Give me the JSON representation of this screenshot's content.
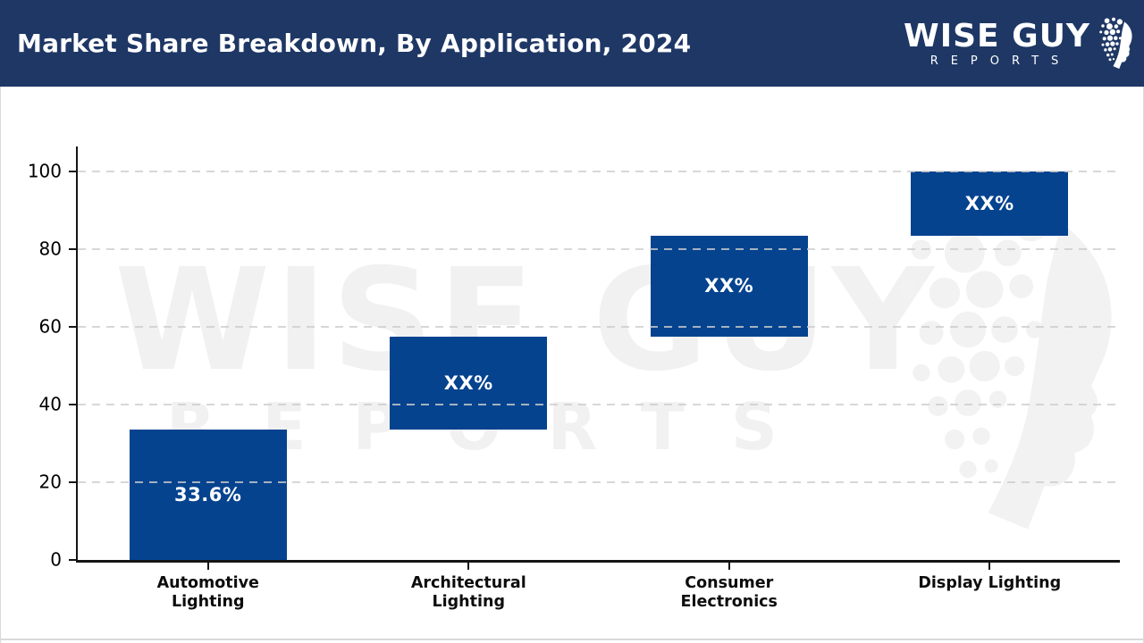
{
  "header": {
    "title": "Market Share Breakdown, By Application, 2024"
  },
  "brand": {
    "wordmark": "WISE GUY",
    "reports": "REPORTS",
    "head_icon": "dotted-face-profile"
  },
  "watermark": {
    "wordmark": "WISE GUY",
    "reports": "REPORTS",
    "head_icon": "dotted-face-profile"
  },
  "chart_data": {
    "type": "bar",
    "subtype": "waterfall",
    "title": "Market Share Breakdown, By Application, 2024",
    "xlabel": "",
    "ylabel": "",
    "ylim": [
      0,
      105
    ],
    "yticks": [
      0,
      20,
      40,
      60,
      80,
      100
    ],
    "grid": "horizontal-dashed",
    "legend": "none",
    "bar_color": "#05438f",
    "value_label_color": "#ffffff",
    "categories": [
      "Automotive Lighting",
      "Architectural Lighting",
      "Consumer Electronics",
      "Display Lighting"
    ],
    "segments": [
      {
        "category": "Automotive Lighting",
        "lines": [
          "Automotive",
          "Lighting"
        ],
        "start": 0,
        "end": 33.6,
        "value": 33.6,
        "label": "33.6%"
      },
      {
        "category": "Architectural Lighting",
        "lines": [
          "Architectural",
          "Lighting"
        ],
        "start": 33.6,
        "end": 57.5,
        "value": 23.9,
        "label": "XX%"
      },
      {
        "category": "Consumer Electronics",
        "lines": [
          "Consumer",
          "Electronics"
        ],
        "start": 57.5,
        "end": 83.5,
        "value": 26.0,
        "label": "XX%"
      },
      {
        "category": "Display Lighting",
        "lines": [
          "Display Lighting"
        ],
        "start": 83.5,
        "end": 100,
        "value": 16.5,
        "label": "XX%"
      }
    ]
  }
}
